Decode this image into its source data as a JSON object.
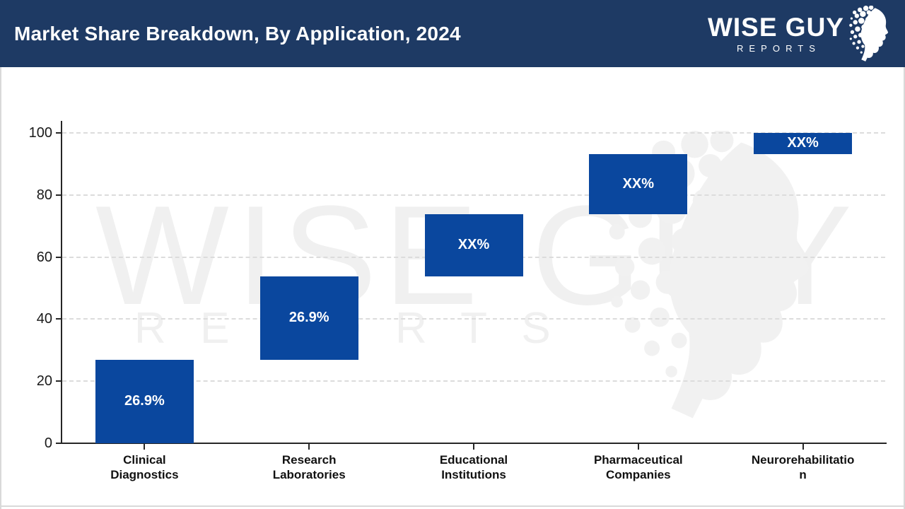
{
  "header": {
    "title": "Market Share Breakdown, By Application, 2024",
    "logo": {
      "name": "WISE GUY",
      "tagline": "REPORTS"
    }
  },
  "watermark": {
    "name": "WISE GUY",
    "tagline": "REPORTS"
  },
  "chart_data": {
    "type": "bar",
    "subtype": "waterfall-cumulative-market-share",
    "title": "Market Share Breakdown, By Application, 2024",
    "categories": [
      "Clinical\nDiagnostics",
      "Research\nLaboratories",
      "Educational\nInstitutions",
      "Pharmaceutical\nCompanies",
      "Neurorehabilitatio\nn"
    ],
    "segments": [
      {
        "category": "Clinical Diagnostics",
        "start": 0,
        "end": 26.9,
        "label": "26.9%"
      },
      {
        "category": "Research Laboratories",
        "start": 26.9,
        "end": 53.8,
        "label": "26.9%"
      },
      {
        "category": "Educational Institutions",
        "start": 53.8,
        "end": 73.8,
        "label": "XX%"
      },
      {
        "category": "Pharmaceutical Companies",
        "start": 73.8,
        "end": 93.2,
        "label": "XX%"
      },
      {
        "category": "Neurorehabilitation",
        "start": 93.2,
        "end": 100,
        "label": "XX%"
      }
    ],
    "yticks": [
      "0",
      "20",
      "40",
      "60",
      "80",
      "100"
    ],
    "ylim": [
      0,
      100
    ],
    "grid": "horizontal-dashed",
    "legend": "none",
    "bar_color": "#0a479e",
    "bar_label_color": "#ffffff",
    "axis_color": "#262626",
    "grid_color": "#dcdcdc",
    "header_bg": "#1e3a64",
    "watermark_color": "#f0f0f0"
  }
}
